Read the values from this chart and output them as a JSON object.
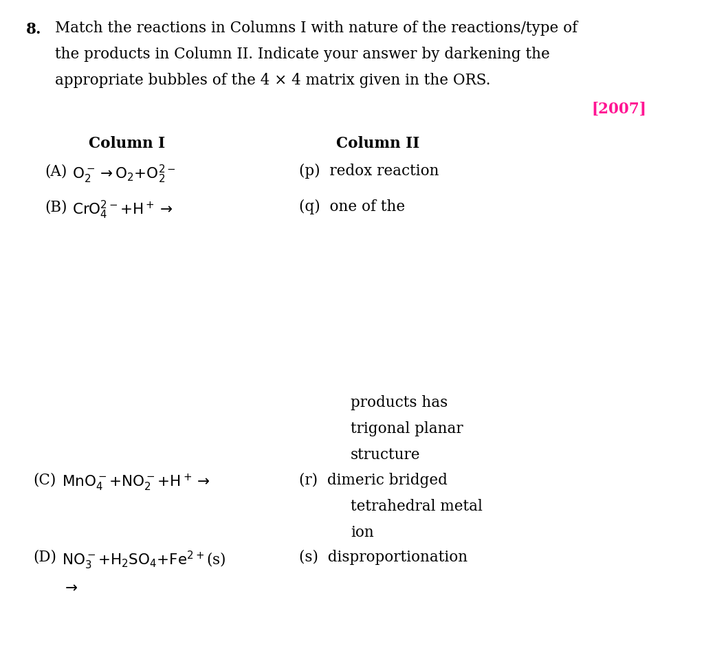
{
  "background_color": "#ffffff",
  "question_number": "8.",
  "question_lines": [
    "Match the reactions in Columns I with nature of the reactions/type of",
    "the products in Column II. Indicate your answer by darkening the",
    "appropriate bubbles of the 4 × 4 matrix given in the ORS."
  ],
  "year_tag": "[2007]",
  "col1_header": "Column I",
  "col2_header": "Column II",
  "font_size": 15.5,
  "font_size_bold": 15.5,
  "year_color": "#FF1493"
}
